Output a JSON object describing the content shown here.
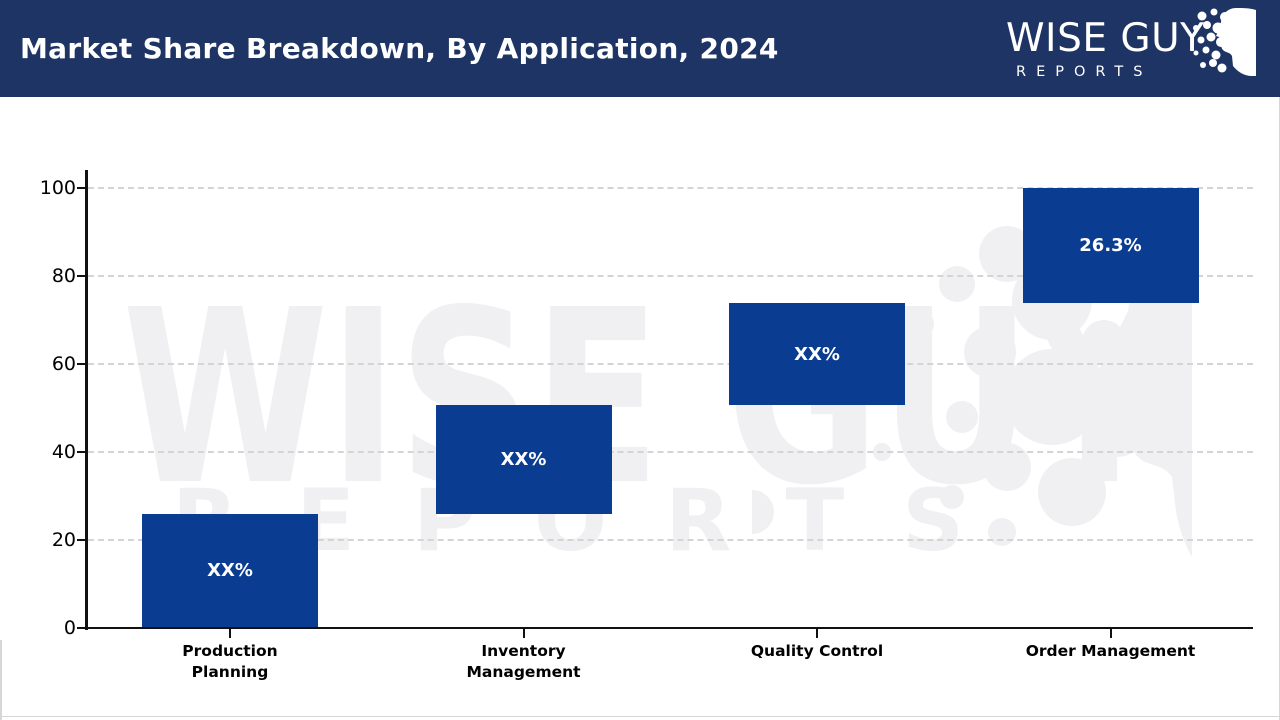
{
  "header": {
    "title": "Market Share Breakdown, By Application, 2024",
    "logo": {
      "brand_line1": "WISE GUY",
      "brand_line2": "REPORTS"
    }
  },
  "watermark": {
    "line1": "WISE GUY",
    "line2": "REPORTS"
  },
  "chart_data": {
    "type": "bar",
    "subtype": "waterfall-floating-segments",
    "title": "Market Share Breakdown, By Application, 2024",
    "categories": [
      "Production Planning",
      "Inventory Management",
      "Quality Control",
      "Order Management"
    ],
    "categories_display": [
      "Production\nPlanning",
      "Inventory\nManagement",
      "Quality Control",
      "Order Management"
    ],
    "segments": [
      {
        "category": "Production Planning",
        "start": 0,
        "end": 25.8,
        "label": "XX%"
      },
      {
        "category": "Inventory Management",
        "start": 25.8,
        "end": 50.5,
        "label": "XX%"
      },
      {
        "category": "Quality Control",
        "start": 50.5,
        "end": 73.7,
        "label": "XX%"
      },
      {
        "category": "Order Management",
        "start": 73.7,
        "end": 100,
        "label": "26.3%"
      }
    ],
    "xlabel": "",
    "ylabel": "",
    "yticks": [
      0,
      20,
      40,
      60,
      80,
      100
    ],
    "ylim": [
      0,
      105
    ],
    "grid": "horizontal-dashed",
    "legend": "none",
    "bar_color": "#0a3d91",
    "bar_label_color": "#ffffff"
  },
  "colors": {
    "header_bg": "#1e3464",
    "bar": "#0a3d91",
    "watermark": "#f0f0f3",
    "grid": "#d4d4d4",
    "axis": "#111111",
    "title_text": "#ffffff"
  }
}
